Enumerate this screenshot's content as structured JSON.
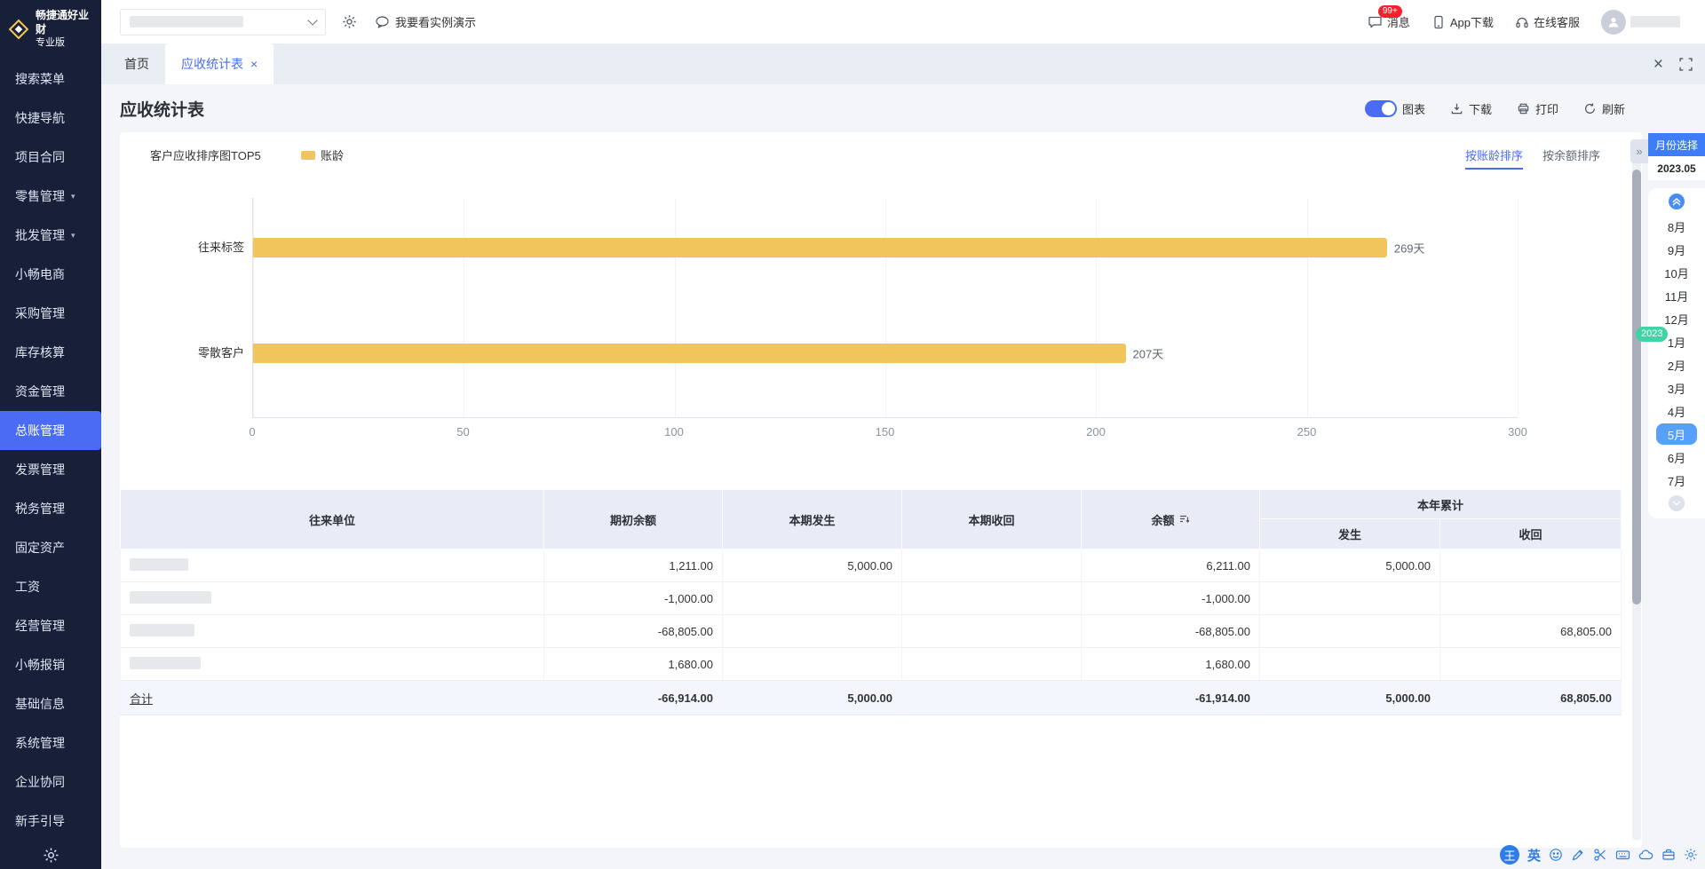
{
  "colors": {
    "sidebar_bg": "#182039",
    "accent_blue": "#4a6cf5",
    "bar_yellow": "#f2c55c",
    "active_month_blue": "#57a0f8",
    "year_badge_green": "#3fd3a5",
    "badge_red": "#f5222d"
  },
  "icons": {
    "menu_caret": "▾",
    "collapse": "»",
    "close": "×",
    "tab_close": "×"
  },
  "brand": {
    "name": "畅捷通好业财",
    "edition": "专业版"
  },
  "sidebar": {
    "items": [
      {
        "label": "搜索菜单"
      },
      {
        "label": "快捷导航"
      },
      {
        "label": "项目合同"
      },
      {
        "label": "零售管理",
        "expandable": true
      },
      {
        "label": "批发管理",
        "expandable": true
      },
      {
        "label": "小畅电商"
      },
      {
        "label": "采购管理"
      },
      {
        "label": "库存核算"
      },
      {
        "label": "资金管理"
      },
      {
        "label": "总账管理",
        "active": true
      },
      {
        "label": "发票管理"
      },
      {
        "label": "税务管理"
      },
      {
        "label": "固定资产"
      },
      {
        "label": "工资"
      },
      {
        "label": "经营管理"
      },
      {
        "label": "小畅报销"
      },
      {
        "label": "基础信息"
      },
      {
        "label": "系统管理"
      },
      {
        "label": "企业协同"
      },
      {
        "label": "新手引导"
      }
    ]
  },
  "topbar": {
    "demo_link": "我要看实例演示",
    "messages_label": "消息",
    "messages_badge": "99+",
    "app_download_label": "App下载",
    "support_label": "在线客服"
  },
  "tabbar": {
    "tabs": [
      {
        "label": "首页",
        "active": false
      },
      {
        "label": "应收统计表",
        "active": true,
        "closable": true
      }
    ]
  },
  "report": {
    "title": "应收统计表",
    "toolbar": {
      "chart_toggle_label": "图表",
      "download_label": "下载",
      "print_label": "打印",
      "refresh_label": "刷新"
    },
    "sort_tabs": [
      {
        "label": "按账龄排序",
        "active": true
      },
      {
        "label": "按余额排序",
        "active": false
      }
    ]
  },
  "chart_data": {
    "type": "bar",
    "orientation": "horizontal",
    "title": "客户应收排序图TOP5",
    "legend": [
      "账龄"
    ],
    "categories": [
      "往来标签",
      "零散客户"
    ],
    "values": [
      269,
      207
    ],
    "value_labels": [
      "269天",
      "207天"
    ],
    "unit": "天",
    "xlim": [
      0,
      300
    ],
    "xticks": [
      0,
      50,
      100,
      150,
      200,
      250,
      300
    ],
    "grid": true,
    "bar_color": "#f2c55c"
  },
  "table": {
    "headers": {
      "unit": "往来单位",
      "opening": "期初余额",
      "incurred": "本期发生",
      "received": "本期收回",
      "balance": "余额",
      "year_group": "本年累计",
      "year_incurred": "发生",
      "year_received": "收回"
    },
    "rows": [
      {
        "redacted": true,
        "redact_width": 66,
        "opening": "1,211.00",
        "incurred": "5,000.00",
        "received": "",
        "balance": "6,211.00",
        "year_incurred": "5,000.00",
        "year_received": ""
      },
      {
        "redacted": true,
        "redact_width": 92,
        "opening": "-1,000.00",
        "incurred": "",
        "received": "",
        "balance": "-1,000.00",
        "year_incurred": "",
        "year_received": ""
      },
      {
        "redacted": true,
        "redact_width": 73,
        "opening": "-68,805.00",
        "incurred": "",
        "received": "",
        "balance": "-68,805.00",
        "year_incurred": "",
        "year_received": "68,805.00"
      },
      {
        "redacted": true,
        "redact_width": 80,
        "opening": "1,680.00",
        "incurred": "",
        "received": "",
        "balance": "1,680.00",
        "year_incurred": "",
        "year_received": ""
      }
    ],
    "total": {
      "label": "合计",
      "opening": "-66,914.00",
      "incurred": "5,000.00",
      "received": "",
      "balance": "-61,914.00",
      "year_incurred": "5,000.00",
      "year_received": "68,805.00"
    }
  },
  "month_panel": {
    "title": "月份选择",
    "current": "2023.05",
    "year_badge": "2023",
    "months": [
      {
        "label": "8月"
      },
      {
        "label": "9月"
      },
      {
        "label": "10月"
      },
      {
        "label": "11月"
      },
      {
        "label": "12月"
      },
      {
        "label": "1月"
      },
      {
        "label": "2月"
      },
      {
        "label": "3月"
      },
      {
        "label": "4月"
      },
      {
        "label": "5月",
        "active": true
      },
      {
        "label": "6月"
      },
      {
        "label": "7月"
      }
    ]
  },
  "ime": {
    "logo_char": "王",
    "mode": "英"
  }
}
